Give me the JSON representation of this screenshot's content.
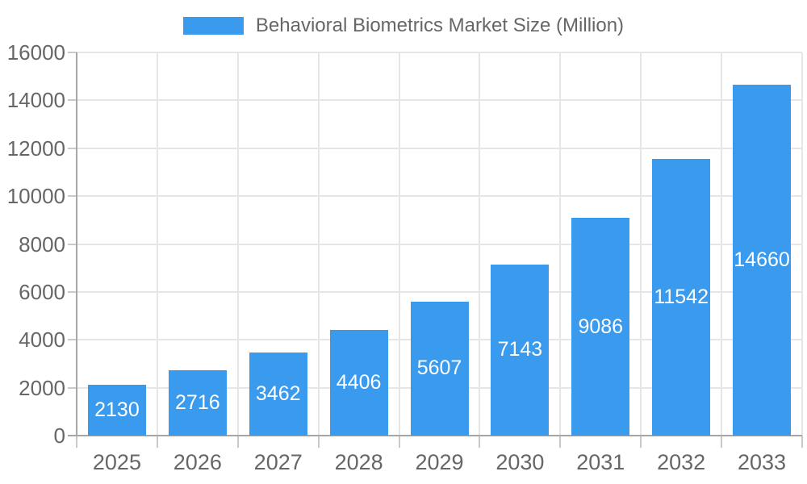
{
  "chart_data": {
    "type": "bar",
    "title": "",
    "legend": "Behavioral Biometrics Market Size (Million)",
    "legend_position": "top",
    "categories": [
      "2025",
      "2026",
      "2027",
      "2028",
      "2029",
      "2030",
      "2031",
      "2032",
      "2033"
    ],
    "values": [
      2130,
      2716,
      3462,
      4406,
      5607,
      7143,
      9086,
      11542,
      14660
    ],
    "value_labels": [
      "2130",
      "2716",
      "3462",
      "4406",
      "5607",
      "7143",
      "9086",
      "11542",
      "14660"
    ],
    "xlabel": "",
    "ylabel": "",
    "ylim": [
      0,
      16000
    ],
    "ytick_step": 2000,
    "ytick_labels": [
      "0",
      "2000",
      "4000",
      "6000",
      "8000",
      "10000",
      "12000",
      "14000",
      "16000"
    ],
    "grid": true,
    "colors": {
      "bar": "#399aee",
      "bar_value_text": "#ffffff",
      "grid_line": "#e6e6e6",
      "axis_line": "#a6a6a6",
      "tick_mark": "#c9c9c9",
      "axis_text": "#666666",
      "legend_text": "#666666",
      "background": "#ffffff"
    }
  }
}
